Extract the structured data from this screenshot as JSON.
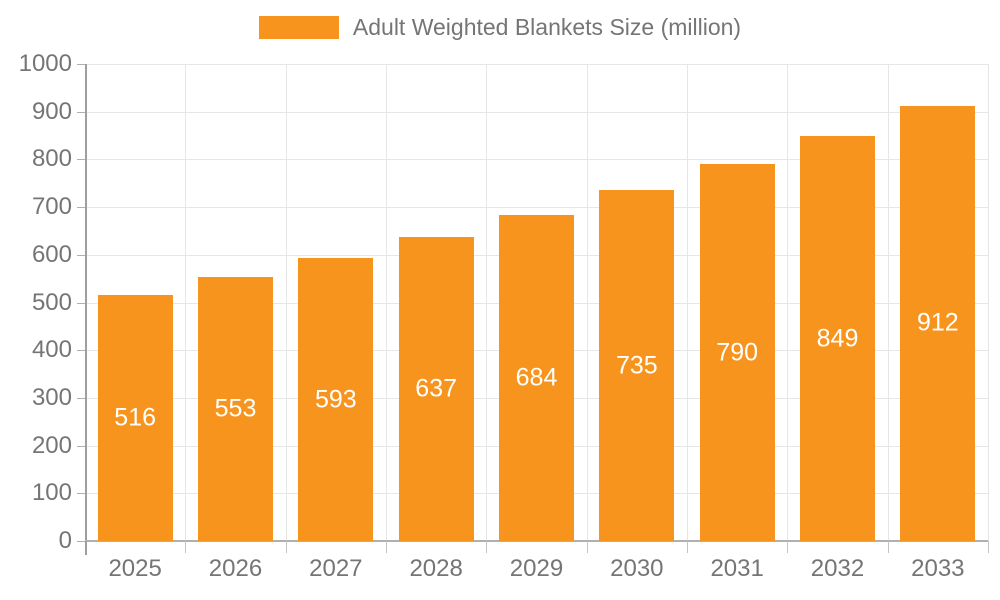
{
  "legend": {
    "label": "Adult Weighted Blankets Size (million)"
  },
  "chart_data": {
    "type": "bar",
    "title": "Adult Weighted Blankets Size (million)",
    "series_name": "Adult Weighted Blankets Size (million)",
    "categories": [
      "2025",
      "2026",
      "2027",
      "2028",
      "2029",
      "2030",
      "2031",
      "2032",
      "2033"
    ],
    "values": [
      516,
      553,
      593,
      637,
      684,
      735,
      790,
      849,
      912
    ],
    "bar_value_labels": [
      "516",
      "553",
      "593",
      "637",
      "684",
      "735",
      "790",
      "849",
      "912"
    ],
    "xlabel": "",
    "ylabel": "",
    "ylim": [
      0,
      1000
    ],
    "ytick_step": 100,
    "yticks": [
      0,
      100,
      200,
      300,
      400,
      500,
      600,
      700,
      800,
      900,
      1000
    ],
    "ytick_labels": [
      "0",
      "100",
      "200",
      "300",
      "400",
      "500",
      "600",
      "700",
      "800",
      "900",
      "1000"
    ],
    "grid": true,
    "legend_position": "top-center",
    "value_label_position": "inside-center",
    "colors": {
      "bar": "#f7941e",
      "bar_value_text": "#ffffff",
      "grid": "#e6e6e6",
      "axis": "#9e9e9e",
      "text": "#757575",
      "background": "#ffffff"
    }
  }
}
